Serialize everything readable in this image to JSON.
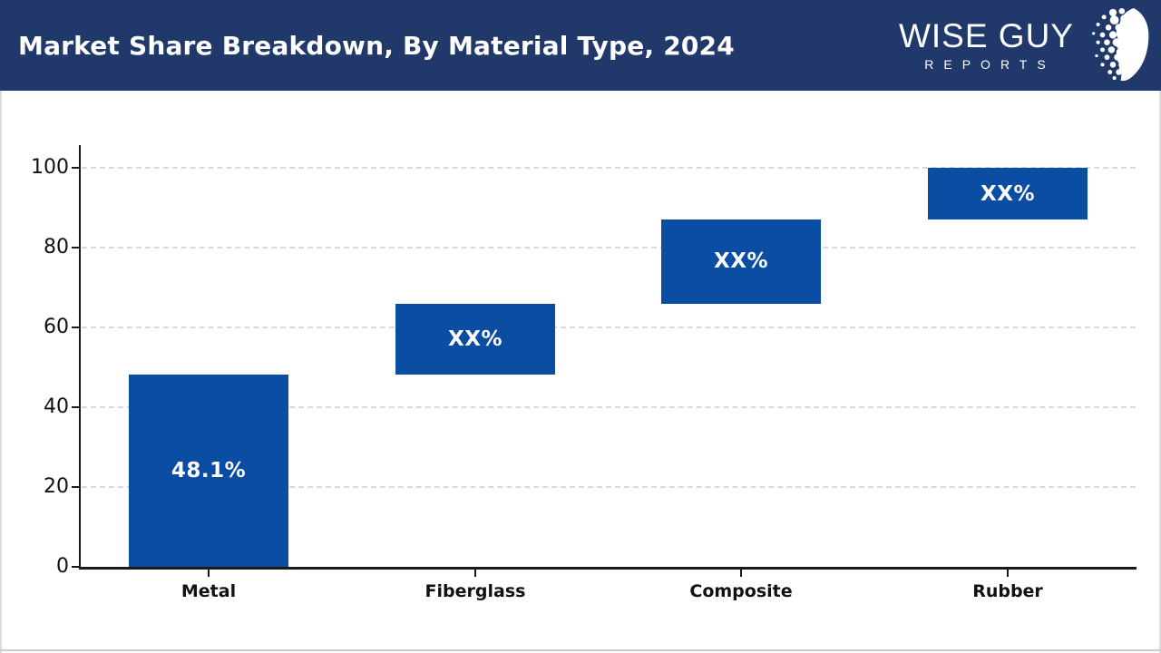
{
  "header": {
    "title": "Market Share Breakdown, By Material Type, 2024",
    "logo": {
      "line1": "WISE GUY",
      "line2": "REPORTS"
    }
  },
  "watermark": {
    "line1": "WISE GUY",
    "line2": "REPORTS"
  },
  "chart_data": {
    "type": "bar",
    "subtype": "waterfall",
    "title": "Market Share Breakdown, By Material Type, 2024",
    "categories": [
      "Metal",
      "Fiberglass",
      "Composite",
      "Rubber"
    ],
    "segments": [
      {
        "category": "Metal",
        "start": 0,
        "end": 48.1,
        "label": "48.1%"
      },
      {
        "category": "Fiberglass",
        "start": 48.1,
        "end": 66.0,
        "label": "XX%"
      },
      {
        "category": "Composite",
        "start": 66.0,
        "end": 87.0,
        "label": "XX%"
      },
      {
        "category": "Rubber",
        "start": 87.0,
        "end": 100.0,
        "label": "XX%"
      }
    ],
    "y_ticks": [
      0,
      20,
      40,
      60,
      80,
      100
    ],
    "ylim": [
      0,
      105
    ],
    "xlabel": "",
    "ylabel": "",
    "grid": "horizontal-dashed",
    "legend": "none"
  },
  "colors": {
    "header_bg": "#20386a",
    "bar": "#0b4da2",
    "bar_label": "#ffffff",
    "axis": "#1a1a1a",
    "gridline": "#d9d9d9",
    "watermark": "#f0f1f3",
    "frame_border": "#cdcdcd"
  }
}
